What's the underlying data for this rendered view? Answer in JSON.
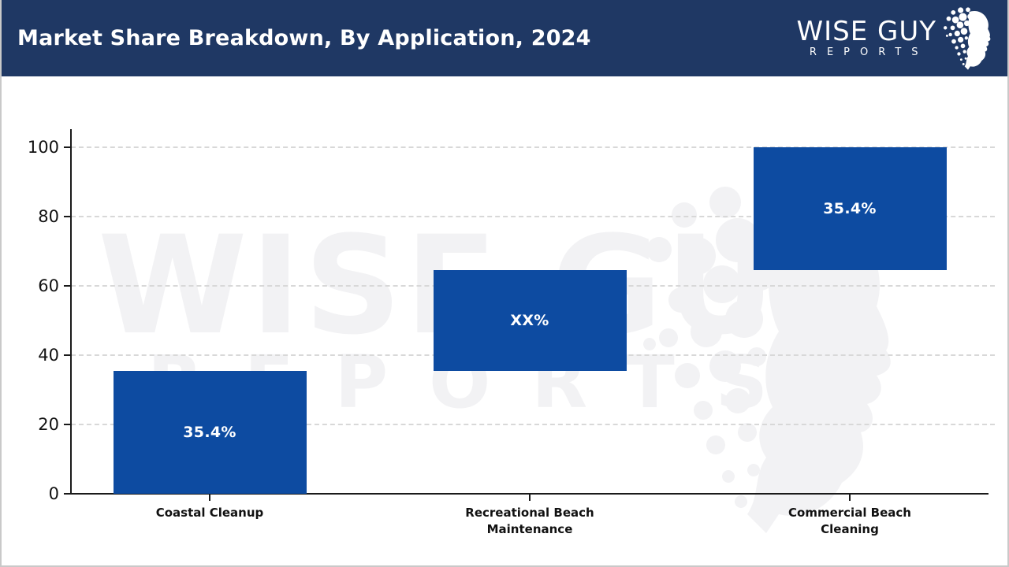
{
  "header": {
    "title": "Market Share Breakdown, By Application, 2024",
    "logo": {
      "line1": "WISE GUY",
      "line2": "REPORTS"
    }
  },
  "watermark": {
    "line1": "WISE GUY",
    "line2": "REPORTS"
  },
  "chart_data": {
    "type": "bar",
    "variant": "floating-stacked-segments",
    "title": "Market Share Breakdown, By Application, 2024",
    "categories": [
      "Coastal Cleanup",
      "Recreational Beach Maintenance",
      "Commercial Beach Cleaning"
    ],
    "category_label_lines": [
      [
        "Coastal Cleanup"
      ],
      [
        "Recreational Beach",
        "Maintenance"
      ],
      [
        "Commercial Beach",
        "Cleaning"
      ]
    ],
    "segments": [
      {
        "category": "Coastal Cleanup",
        "from": 0,
        "to": 35.4,
        "label": "35.4%"
      },
      {
        "category": "Recreational Beach Maintenance",
        "from": 35.4,
        "to": 64.6,
        "label": "XX%"
      },
      {
        "category": "Commercial Beach Cleaning",
        "from": 64.6,
        "to": 100,
        "label": "35.4%"
      }
    ],
    "xlabel": "",
    "ylabel": "",
    "ylim": [
      0,
      100
    ],
    "yticks": [
      0,
      20,
      40,
      60,
      80,
      100
    ],
    "grid": "horizontal-dashed",
    "legend": false,
    "bar_color": "#0d4ba1",
    "bar_label_color": "#ffffff"
  },
  "colors": {
    "header_bg": "#1f3864",
    "bar_blue": "#0d4ba1",
    "grid_gray": "#d8d8d8",
    "axis_black": "#1a1a1a",
    "watermark_gray": "#f2f2f4",
    "page_border": "#c9c9c9"
  }
}
